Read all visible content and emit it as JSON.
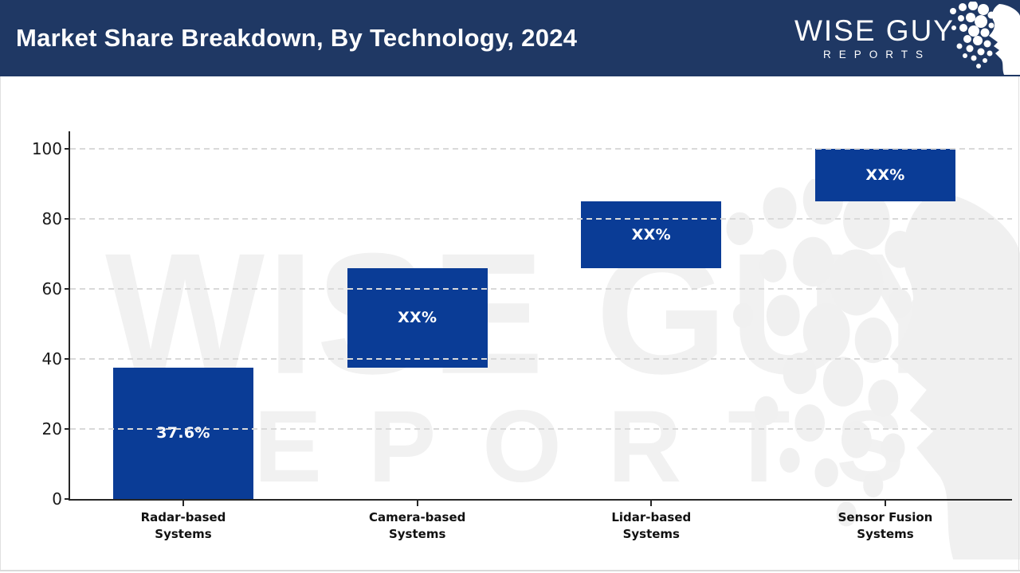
{
  "header": {
    "title": "Market Share Breakdown, By Technology, 2024",
    "brand_line1": "WISE GUY",
    "brand_line2": "REPORTS",
    "background_color": "#1f3864"
  },
  "watermark": {
    "line1": "WISE GUY",
    "line2": "REPORTS"
  },
  "chart_data": {
    "type": "bar",
    "subtype": "waterfall",
    "title": "Market Share Breakdown, By Technology, 2024",
    "categories": [
      "Radar-based Systems",
      "Camera-based Systems",
      "Lidar-based Systems",
      "Sensor Fusion Systems"
    ],
    "segments": [
      {
        "category": "Radar-based Systems",
        "label": "37.6%",
        "start": 0,
        "end": 37.6
      },
      {
        "category": "Camera-based Systems",
        "label": "XX%",
        "start": 37.6,
        "end": 66
      },
      {
        "category": "Lidar-based Systems",
        "label": "XX%",
        "start": 66,
        "end": 85
      },
      {
        "category": "Sensor Fusion Systems",
        "label": "XX%",
        "start": 85,
        "end": 100
      }
    ],
    "yticks": [
      0,
      20,
      40,
      60,
      80,
      100
    ],
    "ylim": [
      0,
      105
    ],
    "xlabel": "",
    "ylabel": "",
    "bar_color": "#0a3c96",
    "grid": "horizontal-dashed",
    "legend": "none"
  }
}
